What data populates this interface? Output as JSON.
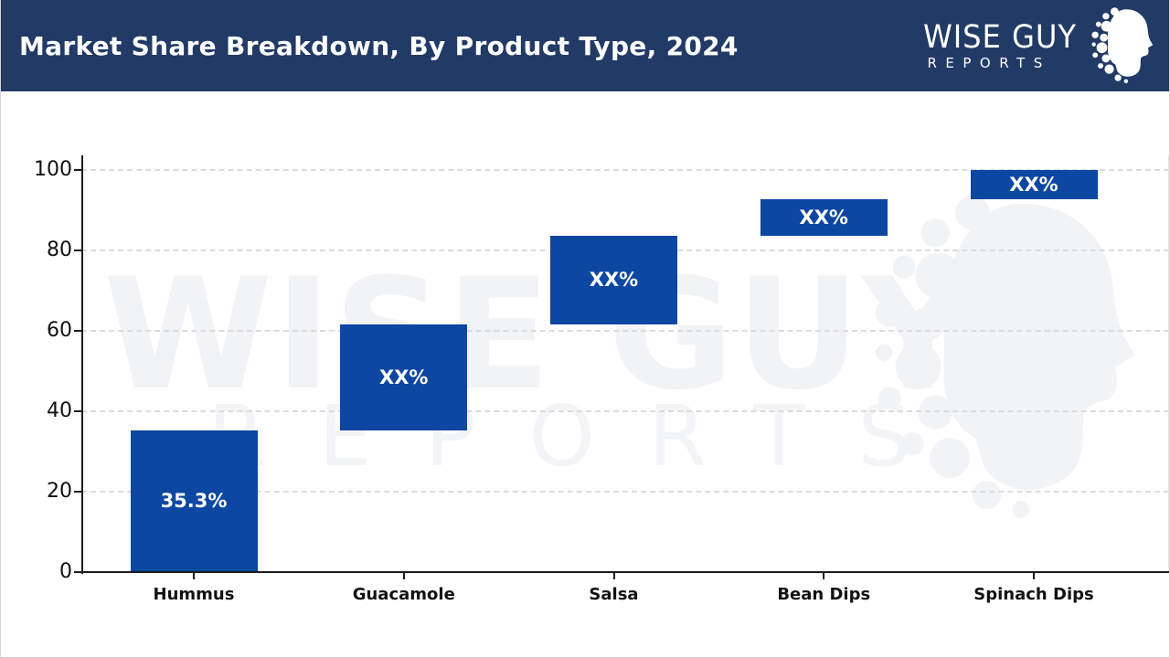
{
  "header": {
    "title": "Market Share Breakdown, By Product Type, 2024",
    "logo": {
      "line1": "WISE GUY",
      "line2": "REPORTS"
    }
  },
  "watermark": {
    "line1": "WISE GUY",
    "line2": "REPORTS"
  },
  "colors": {
    "header_bg": "#213a66",
    "bar_blue": "#0d47a1",
    "axis": "#1c1c1c",
    "gridline": "#dcdcdc",
    "watermark": "#f2f3f5",
    "value_label": "#ffffff"
  },
  "chart_data": {
    "type": "bar",
    "subtype": "waterfall-floating-bars",
    "title": "Market Share Breakdown, By Product Type, 2024",
    "xlabel": "",
    "ylabel": "",
    "categories": [
      "Hummus",
      "Guacamole",
      "Salsa",
      "Bean Dips",
      "Spinach Dips"
    ],
    "segments": [
      {
        "category": "Hummus",
        "start": 0,
        "end": 35.3,
        "value": 35.3,
        "label": "35.3%"
      },
      {
        "category": "Guacamole",
        "start": 35.3,
        "end": 61.6,
        "value": 26.3,
        "label": "XX%"
      },
      {
        "category": "Salsa",
        "start": 61.6,
        "end": 83.7,
        "value": 22.1,
        "label": "XX%"
      },
      {
        "category": "Bean Dips",
        "start": 83.7,
        "end": 92.7,
        "value": 9.0,
        "label": "XX%"
      },
      {
        "category": "Spinach Dips",
        "start": 92.7,
        "end": 100,
        "value": 7.3,
        "label": "XX%"
      }
    ],
    "y_ticks": [
      0,
      20,
      40,
      60,
      80,
      100
    ],
    "ylim": [
      0,
      103.6
    ],
    "grid": "horizontal-dashed",
    "legend": "none",
    "bar_color": "#0d47a1"
  }
}
